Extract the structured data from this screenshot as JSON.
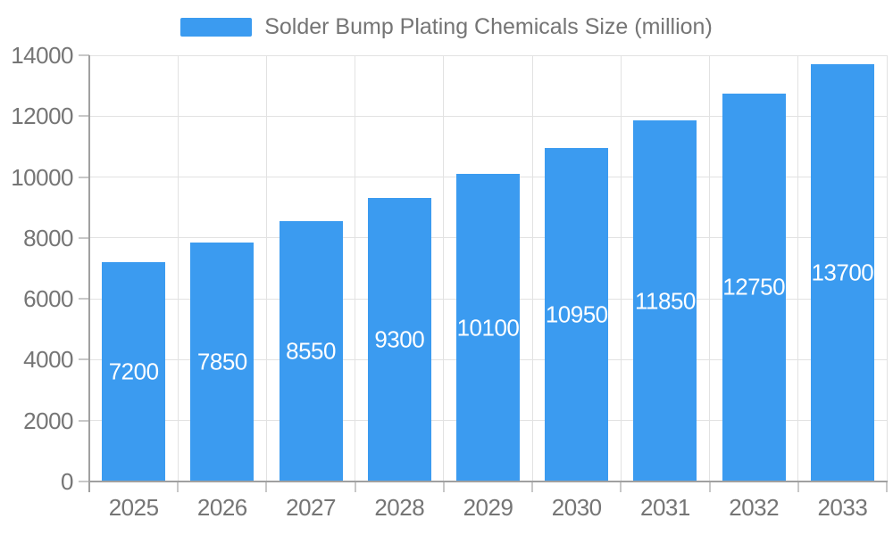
{
  "legend": {
    "label": "Solder Bump Plating Chemicals Size (million)"
  },
  "colors": {
    "bar": "#3B9BF0",
    "bar_label": "#ffffff",
    "axis_line": "#a0a0a0",
    "grid_line": "#e2e2e2",
    "tick": "#c8c8c8",
    "axis_text": "#757575",
    "legend_text": "#757575",
    "background": "#ffffff"
  },
  "chart_data": {
    "type": "bar",
    "title": "Solder Bump Plating Chemicals Size (million)",
    "categories": [
      "2025",
      "2026",
      "2027",
      "2028",
      "2029",
      "2030",
      "2031",
      "2032",
      "2033"
    ],
    "values": [
      7200,
      7850,
      8550,
      9300,
      10100,
      10950,
      11850,
      12750,
      13700
    ],
    "xlabel": "",
    "ylabel": "",
    "ylim": [
      0,
      14000
    ],
    "yticks": [
      0,
      2000,
      4000,
      6000,
      8000,
      10000,
      12000,
      14000
    ],
    "grid": true,
    "legend_position": "top",
    "bar_labels_visible": true,
    "bar_label_position": "center"
  }
}
